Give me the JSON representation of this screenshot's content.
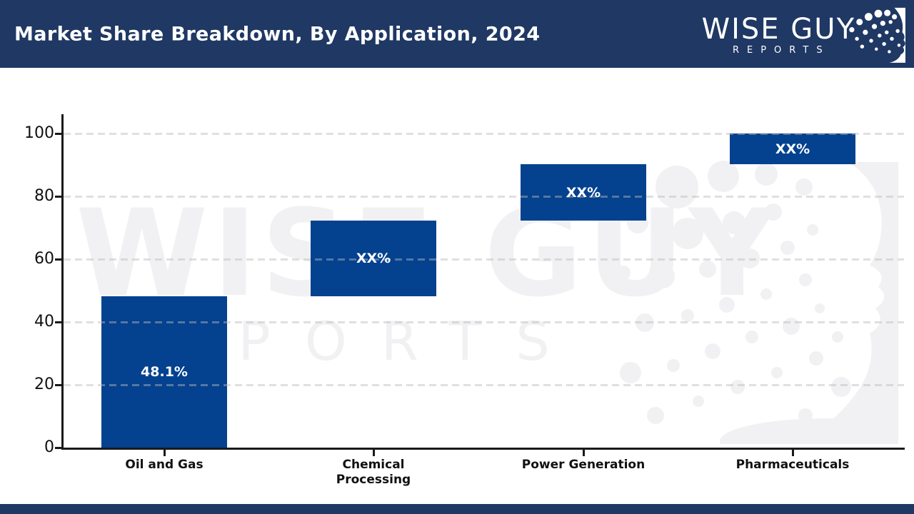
{
  "header": {
    "title": "Market Share Breakdown, By Application, 2024"
  },
  "logo": {
    "name_top": "WISE GUY",
    "name_bottom": "REPORTS",
    "face_icon": "dotted-head-profile"
  },
  "watermark": {
    "line1": "WISE GUY",
    "line2": "REPORTS",
    "face_icon": "dotted-head-profile"
  },
  "colors": {
    "header_bg": "#1f3864",
    "footer_bg": "#1f3864",
    "bar": "#04418f",
    "grid": "#d9d9d9",
    "axis": "#1a1a1a",
    "bar_label_text": "#ffffff",
    "watermark": "#f1f1f3"
  },
  "chart_data": {
    "type": "bar",
    "subtype": "waterfall",
    "title": "Market Share Breakdown, By Application, 2024",
    "xlabel": "",
    "ylabel": "",
    "categories": [
      "Oil and Gas",
      "Chemical Processing",
      "Power Generation",
      "Pharmaceuticals"
    ],
    "segments": [
      {
        "category": "Oil and Gas",
        "lines": [
          "Oil and Gas"
        ],
        "start": 0,
        "end": 48.1,
        "label": "48.1%"
      },
      {
        "category": "Chemical Processing",
        "lines": [
          "Chemical",
          "Processing"
        ],
        "start": 48.1,
        "end": 72.2,
        "label": "XX%"
      },
      {
        "category": "Power Generation",
        "lines": [
          "Power Generation"
        ],
        "start": 72.2,
        "end": 90.2,
        "label": "XX%"
      },
      {
        "category": "Pharmaceuticals",
        "lines": [
          "Pharmaceuticals"
        ],
        "start": 90.2,
        "end": 100,
        "label": "XX%"
      }
    ],
    "yticks": [
      0,
      20,
      40,
      60,
      80,
      100
    ],
    "ylim": [
      0,
      100
    ],
    "grid": "dashed-horizontal",
    "legend": "none",
    "bar_color": "#04418f",
    "note": "Values masked as XX% placeholders except first bar (48.1%)"
  }
}
